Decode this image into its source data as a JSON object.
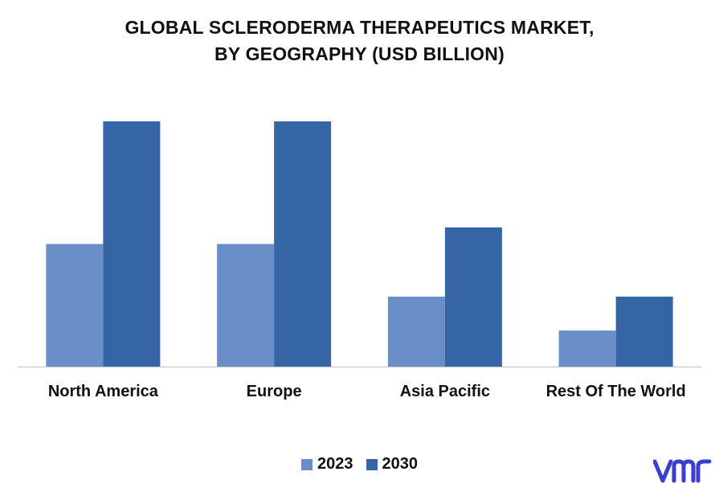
{
  "chart_data": {
    "type": "bar",
    "title_lines": [
      "GLOBAL SCLERODERMA THERAPEUTICS MARKET,",
      "BY GEOGRAPHY (USD BILLION)"
    ],
    "categories": [
      "North America",
      "Europe",
      "Asia Pacific",
      "Rest Of The World"
    ],
    "series": [
      {
        "name": "2023",
        "color": "#6a8fc8",
        "values": [
          1.7,
          1.7,
          0.97,
          0.5
        ]
      },
      {
        "name": "2030",
        "color": "#3565a5",
        "values": [
          3.4,
          3.4,
          1.93,
          0.97
        ]
      }
    ],
    "ylim": [
      0,
      3.4
    ],
    "grid": false,
    "legend_position": "bottom",
    "value_labels_shown": false
  },
  "logo": {
    "text": "vmr",
    "color": "#3a3fd0",
    "icon": "vmr-logo-icon"
  }
}
